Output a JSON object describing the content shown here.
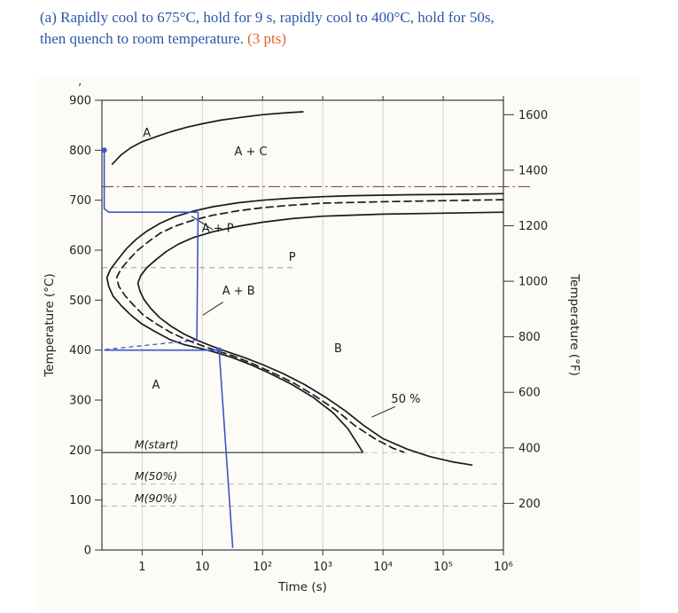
{
  "header": {
    "line1": "(a) Rapidly cool to 675°C, hold for 9 s, rapidly cool to 400°C, hold for 50s,",
    "line2": "then quench to room temperature. ",
    "points": "(3 pts)"
  },
  "figure": {
    "a_mark": "(a)",
    "stray_mark": "’"
  },
  "chart_data": {
    "type": "line",
    "title": "",
    "x_axis": {
      "label": "Time (s)",
      "scale": "log",
      "min": 0.215,
      "max": 1000000,
      "ticks": [
        {
          "t": 1,
          "label": "1"
        },
        {
          "t": 10,
          "label": "10"
        },
        {
          "t": 100,
          "label": "10²"
        },
        {
          "t": 1000,
          "label": "10³"
        },
        {
          "t": 10000,
          "label": "10⁴"
        },
        {
          "t": 100000,
          "label": "10⁵"
        },
        {
          "t": 1000000,
          "label": "10⁶"
        }
      ]
    },
    "y_axis_left": {
      "label": "Temperature (°C)",
      "min": 0,
      "max": 900,
      "ticks": [
        0,
        100,
        200,
        300,
        400,
        500,
        600,
        700,
        800,
        900
      ]
    },
    "y_axis_right": {
      "label": "Temperature (°F)",
      "ticks": [
        200,
        400,
        600,
        800,
        1000,
        1200,
        1400,
        1600
      ]
    },
    "reference_lines": [
      {
        "name": "eutectoid",
        "T": 727,
        "style": "dashdot",
        "color": "#8d4a3a",
        "width": 1.1,
        "t_start": 0.215,
        "t_end": 3000000
      },
      {
        "name": "pearlite-boundary",
        "T": 565,
        "style": "dashed",
        "color": "#9b9b9b",
        "width": 1,
        "t_start": 0.215,
        "t_end": 320
      },
      {
        "name": "m-start",
        "T": 195,
        "style": "solid",
        "color": "#3d3d3d",
        "width": 1.3,
        "t_start": 0.215,
        "t_end": 4600
      },
      {
        "name": "m-start-ext",
        "T": 195,
        "style": "dashed",
        "color": "#bdbdbd",
        "width": 0.9,
        "t_start": 4600,
        "t_end": 1000000
      },
      {
        "name": "m-50",
        "T": 132,
        "style": "dashed",
        "color": "#ababab",
        "width": 0.9,
        "t_start": 0.215,
        "t_end": 1000000
      },
      {
        "name": "m-90",
        "T": 88,
        "style": "dashed",
        "color": "#ababab",
        "width": 0.9,
        "t_start": 0.215,
        "t_end": 1000000
      }
    ],
    "line_labels": [
      {
        "name": "m-start",
        "text": "M(start)",
        "t": 0.75,
        "T": 203
      },
      {
        "name": "m-50",
        "text": "M(50%)",
        "t": 0.75,
        "T": 140
      },
      {
        "name": "m-90",
        "text": "M(90%)",
        "t": 0.75,
        "T": 96
      }
    ],
    "curves": [
      {
        "name": "cementite-start",
        "style": "solid",
        "points": [
          [
            0.32,
            772
          ],
          [
            0.45,
            791
          ],
          [
            0.65,
            805
          ],
          [
            1,
            817
          ],
          [
            1.8,
            828
          ],
          [
            3,
            837
          ],
          [
            5.5,
            846
          ],
          [
            10,
            853
          ],
          [
            20,
            860
          ],
          [
            45,
            866
          ],
          [
            100,
            871
          ],
          [
            250,
            875
          ],
          [
            470,
            877
          ]
        ]
      },
      {
        "name": "transformation-start",
        "style": "solid",
        "points": [
          [
            1000000,
            713
          ],
          [
            300000,
            712
          ],
          [
            30000,
            711
          ],
          [
            10000,
            710
          ],
          [
            3000,
            709
          ],
          [
            1000,
            707
          ],
          [
            300,
            704
          ],
          [
            100,
            700
          ],
          [
            40,
            695
          ],
          [
            15,
            687
          ],
          [
            7,
            678
          ],
          [
            3.5,
            667
          ],
          [
            2,
            654
          ],
          [
            1.2,
            638
          ],
          [
            0.8,
            622
          ],
          [
            0.55,
            603
          ],
          [
            0.4,
            582
          ],
          [
            0.3,
            562
          ],
          [
            0.26,
            545
          ],
          [
            0.28,
            527
          ],
          [
            0.33,
            508
          ],
          [
            0.45,
            489
          ],
          [
            0.65,
            470
          ],
          [
            1,
            452
          ],
          [
            1.7,
            436
          ],
          [
            2.9,
            421
          ],
          [
            5,
            411
          ],
          [
            9,
            404
          ],
          [
            16,
            396
          ],
          [
            30,
            386
          ],
          [
            60,
            372
          ],
          [
            130,
            354
          ],
          [
            300,
            332
          ],
          [
            700,
            305
          ],
          [
            1500,
            274
          ],
          [
            2600,
            243
          ],
          [
            3800,
            212
          ],
          [
            4600,
            196
          ]
        ]
      },
      {
        "name": "transformation-50",
        "style": "dashed",
        "points": [
          [
            1000000,
            701
          ],
          [
            100000,
            699
          ],
          [
            10000,
            697
          ],
          [
            1000,
            694
          ],
          [
            300,
            690
          ],
          [
            100,
            685
          ],
          [
            40,
            679
          ],
          [
            15,
            670
          ],
          [
            7,
            660
          ],
          [
            3.5,
            648
          ],
          [
            2,
            634
          ],
          [
            1.3,
            618
          ],
          [
            0.85,
            600
          ],
          [
            0.6,
            581
          ],
          [
            0.45,
            563
          ],
          [
            0.38,
            546
          ],
          [
            0.41,
            528
          ],
          [
            0.52,
            509
          ],
          [
            0.72,
            490
          ],
          [
            1.05,
            470
          ],
          [
            1.8,
            451
          ],
          [
            3,
            435
          ],
          [
            5.4,
            421
          ],
          [
            9.8,
            409
          ],
          [
            17,
            399
          ],
          [
            33,
            388
          ],
          [
            65,
            374
          ],
          [
            140,
            356
          ],
          [
            330,
            334
          ],
          [
            750,
            308
          ],
          [
            1700,
            279
          ],
          [
            3400,
            249
          ],
          [
            7500,
            222
          ],
          [
            15000,
            203
          ],
          [
            22000,
            196
          ]
        ]
      },
      {
        "name": "transformation-finish",
        "style": "solid",
        "points": [
          [
            1000000,
            676
          ],
          [
            100000,
            674
          ],
          [
            10000,
            672
          ],
          [
            1000,
            668
          ],
          [
            300,
            663
          ],
          [
            100,
            656
          ],
          [
            40,
            648
          ],
          [
            15,
            637
          ],
          [
            7,
            625
          ],
          [
            4,
            612
          ],
          [
            2.5,
            597
          ],
          [
            1.7,
            581
          ],
          [
            1.2,
            565
          ],
          [
            0.95,
            549
          ],
          [
            0.85,
            534
          ],
          [
            0.92,
            518
          ],
          [
            1.08,
            501
          ],
          [
            1.4,
            483
          ],
          [
            1.95,
            465
          ],
          [
            3,
            448
          ],
          [
            5,
            432
          ],
          [
            8.5,
            419
          ],
          [
            15,
            407
          ],
          [
            27,
            396
          ],
          [
            50,
            385
          ],
          [
            100,
            371
          ],
          [
            220,
            353
          ],
          [
            500,
            331
          ],
          [
            1100,
            306
          ],
          [
            2400,
            278
          ],
          [
            4800,
            249
          ],
          [
            10000,
            223
          ],
          [
            25000,
            202
          ],
          [
            60000,
            187
          ],
          [
            150000,
            176
          ],
          [
            300000,
            170
          ]
        ]
      }
    ],
    "region_labels": [
      {
        "text": "A",
        "t": 1.2,
        "T": 827
      },
      {
        "text": "A + C",
        "t": 64,
        "T": 790
      },
      {
        "text": "A + P",
        "t": 18,
        "T": 636
      },
      {
        "text": "P",
        "t": 310,
        "T": 579
      },
      {
        "text": "A + B",
        "t": 40,
        "T": 511
      },
      {
        "text": "B",
        "t": 1800,
        "T": 396
      },
      {
        "text": "A",
        "t": 1.7,
        "T": 323
      },
      {
        "text": "50 %",
        "t": 24000,
        "T": 295
      }
    ],
    "pointers": [
      {
        "name": "a-p-pointer",
        "from": [
          15,
          641
        ],
        "to": [
          6.6,
          668
        ]
      },
      {
        "name": "a-b-pointer",
        "from": [
          22,
          496
        ],
        "to": [
          10.2,
          470
        ]
      },
      {
        "name": "fifty-pct-pointer",
        "from": [
          16000,
          287
        ],
        "to": [
          6500,
          266
        ]
      }
    ],
    "cooling_path": {
      "color": "#3c56c2",
      "solid_segments": [
        [
          [
            0.235,
            800
          ],
          [
            0.235,
            683
          ],
          [
            0.28,
            676
          ],
          [
            8.5,
            676
          ]
        ],
        [
          [
            8.5,
            676
          ],
          [
            8.1,
            420
          ]
        ],
        [
          [
            0.235,
            400
          ],
          [
            19,
            400
          ]
        ],
        [
          [
            19,
            400
          ],
          [
            32,
            4
          ]
        ]
      ],
      "dashed_segments": [
        [
          [
            8.1,
            420
          ],
          [
            0.235,
            401
          ]
        ]
      ],
      "points": [
        [
          0.235,
          800
        ],
        [
          19,
          400
        ]
      ]
    }
  }
}
